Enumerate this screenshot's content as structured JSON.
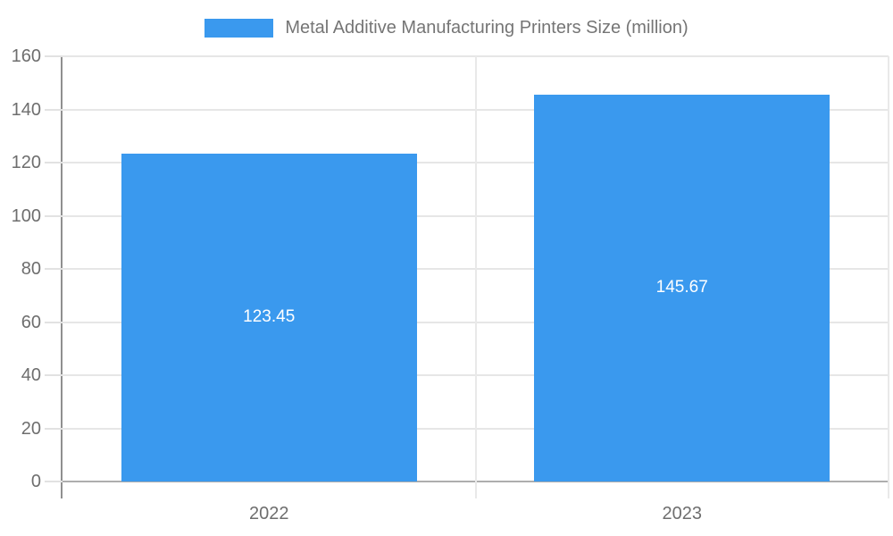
{
  "chart_data": {
    "type": "bar",
    "title": "Metal Additive Manufacturing Printers Size (million)",
    "categories": [
      "2022",
      "2023"
    ],
    "series": [
      {
        "name": "Metal Additive Manufacturing Printers Size (million)",
        "values": [
          123.45,
          145.67
        ]
      }
    ],
    "value_labels": [
      "123.45",
      "145.67"
    ],
    "xlabel": "",
    "ylabel": "",
    "ylim": [
      0,
      160
    ],
    "yticks": [
      0,
      20,
      40,
      60,
      80,
      100,
      120,
      140,
      160
    ],
    "grid": true,
    "legend_position": "top",
    "bar_width_fraction": 0.716,
    "colors": {
      "bar": "#3a99ee",
      "bar_label": "#ffffff",
      "grid": "#e6e6e6",
      "axis": "#8f8f8f",
      "baseline": "#aeaeae",
      "tick_text": "#6e6e6e",
      "legend_text": "#757575"
    }
  }
}
